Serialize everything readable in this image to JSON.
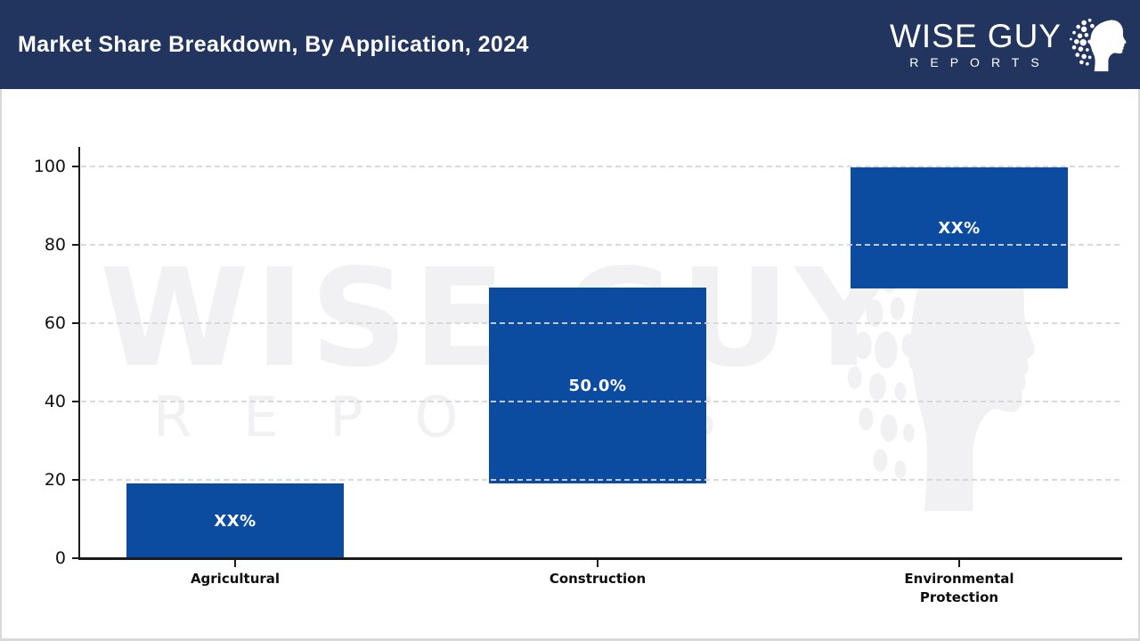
{
  "header": {
    "title": "Market Share Breakdown, By Application, 2024",
    "logo": {
      "name": "Wise Guy Reports",
      "line1": "WISE GUY",
      "line2": "REPORTS"
    }
  },
  "watermark": {
    "line1": "WISE GUY",
    "line2": "REPORTS"
  },
  "chart_data": {
    "type": "bar",
    "variant": "floating-segment breakdown (waterfall-style market share)",
    "title": "Market Share Breakdown, By Application, 2024",
    "categories": [
      "Agricultural",
      "Construction",
      "Environmental Protection"
    ],
    "segments": [
      {
        "category": "Agricultural",
        "from": 0,
        "to": 19,
        "label": "XX%"
      },
      {
        "category": "Construction",
        "from": 19,
        "to": 69,
        "label": "50.0%"
      },
      {
        "category": "Environmental Protection",
        "from": 69,
        "to": 99.8,
        "label": "XX%"
      }
    ],
    "yticks": [
      0,
      20,
      40,
      60,
      80,
      100
    ],
    "ylim": [
      0,
      105
    ],
    "xlabel": "",
    "ylabel": "",
    "grid": "horizontal dashed lines drawn over bars",
    "legend_position": "none",
    "colors": {
      "bar": "#0b4ca1",
      "header_bg": "#22355e",
      "grid": "#d9d9d9",
      "axis": "#1a1a1a",
      "bar_label_text": "#ffffff",
      "watermark": "#f1f1f4"
    }
  }
}
